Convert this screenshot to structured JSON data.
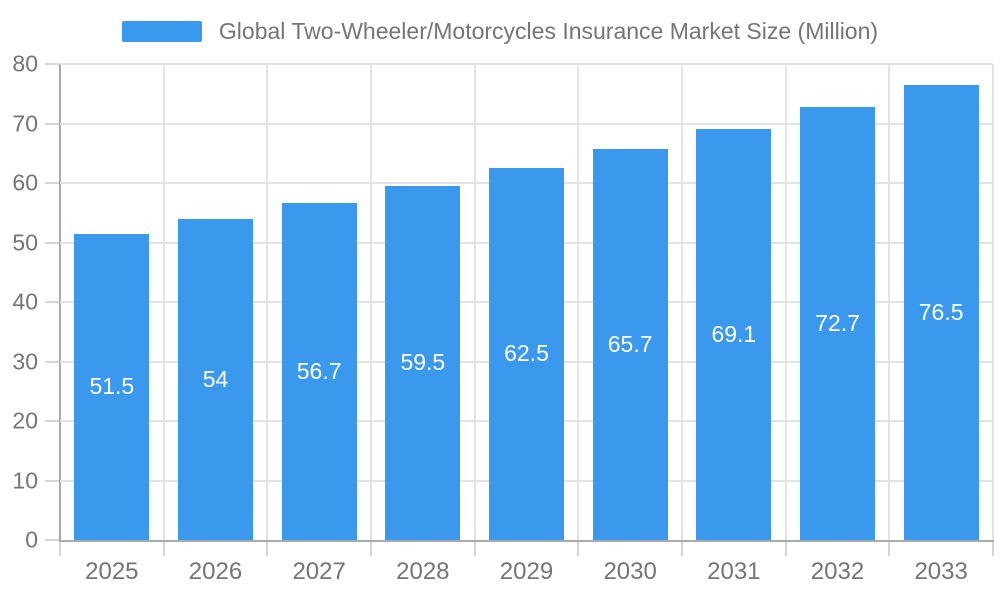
{
  "legend": {
    "label": "Global Two-Wheeler/Motorcycles Insurance Market Size (Million)"
  },
  "chart_data": {
    "type": "bar",
    "title": "Global Two-Wheeler/Motorcycles Insurance Market Size (Million)",
    "categories": [
      "2025",
      "2026",
      "2027",
      "2028",
      "2029",
      "2030",
      "2031",
      "2032",
      "2033"
    ],
    "values": [
      51.5,
      54,
      56.7,
      59.5,
      62.5,
      65.7,
      69.1,
      72.7,
      76.5
    ],
    "xlabel": "",
    "ylabel": "",
    "ylim": [
      0,
      80
    ],
    "ytick_interval": 10,
    "yticks": [
      0,
      10,
      20,
      30,
      40,
      50,
      60,
      70,
      80
    ],
    "grid": true,
    "legend_position": "top",
    "value_labels": "inside-center",
    "colors": {
      "bar": "#3a99ec",
      "value_label": "#ffffff",
      "text": "#757575",
      "axis_line": "#a9a9a9",
      "grid_line": "#e3e3e3",
      "tick": "#d4d4d4",
      "background": "#ffffff"
    }
  }
}
